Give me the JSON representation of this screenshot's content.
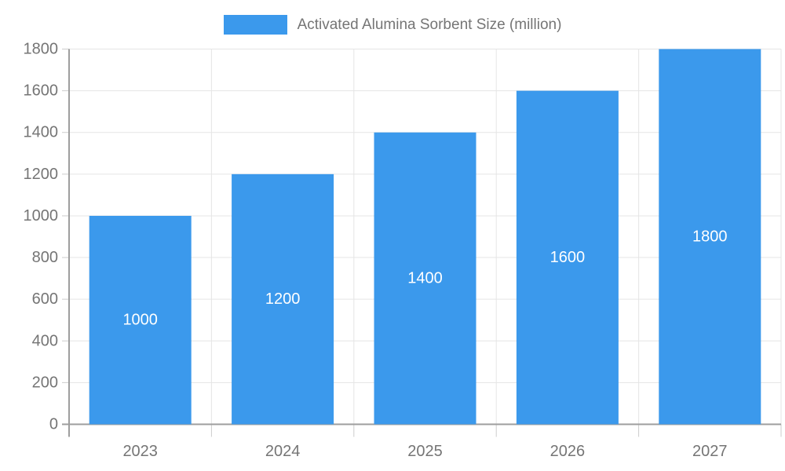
{
  "chart_data": {
    "type": "bar",
    "title": "Activated Alumina Sorbent Size (million)",
    "legend": [
      "Activated Alumina Sorbent Size (million)"
    ],
    "legend_position": "top",
    "categories": [
      "2023",
      "2024",
      "2025",
      "2026",
      "2027"
    ],
    "series": [
      {
        "name": "Activated Alumina Sorbent Size (million)",
        "values": [
          1000,
          1200,
          1400,
          1600,
          1800
        ]
      }
    ],
    "value_labels": [
      "1000",
      "1200",
      "1400",
      "1600",
      "1800"
    ],
    "xlabel": "",
    "ylabel": "",
    "ylim": [
      0,
      1800
    ],
    "ytick_step": 200,
    "yticks": [
      0,
      200,
      400,
      600,
      800,
      1000,
      1200,
      1400,
      1600,
      1800
    ],
    "grid": true,
    "colors": {
      "bar": "#3B99EC",
      "gridline": "#e5e5e5",
      "tick": "#cccccc",
      "axis": "#9e9e9e",
      "tick_label": "#757575",
      "legend_text": "#757575",
      "value_label": "#ffffff",
      "background": "#ffffff"
    }
  }
}
